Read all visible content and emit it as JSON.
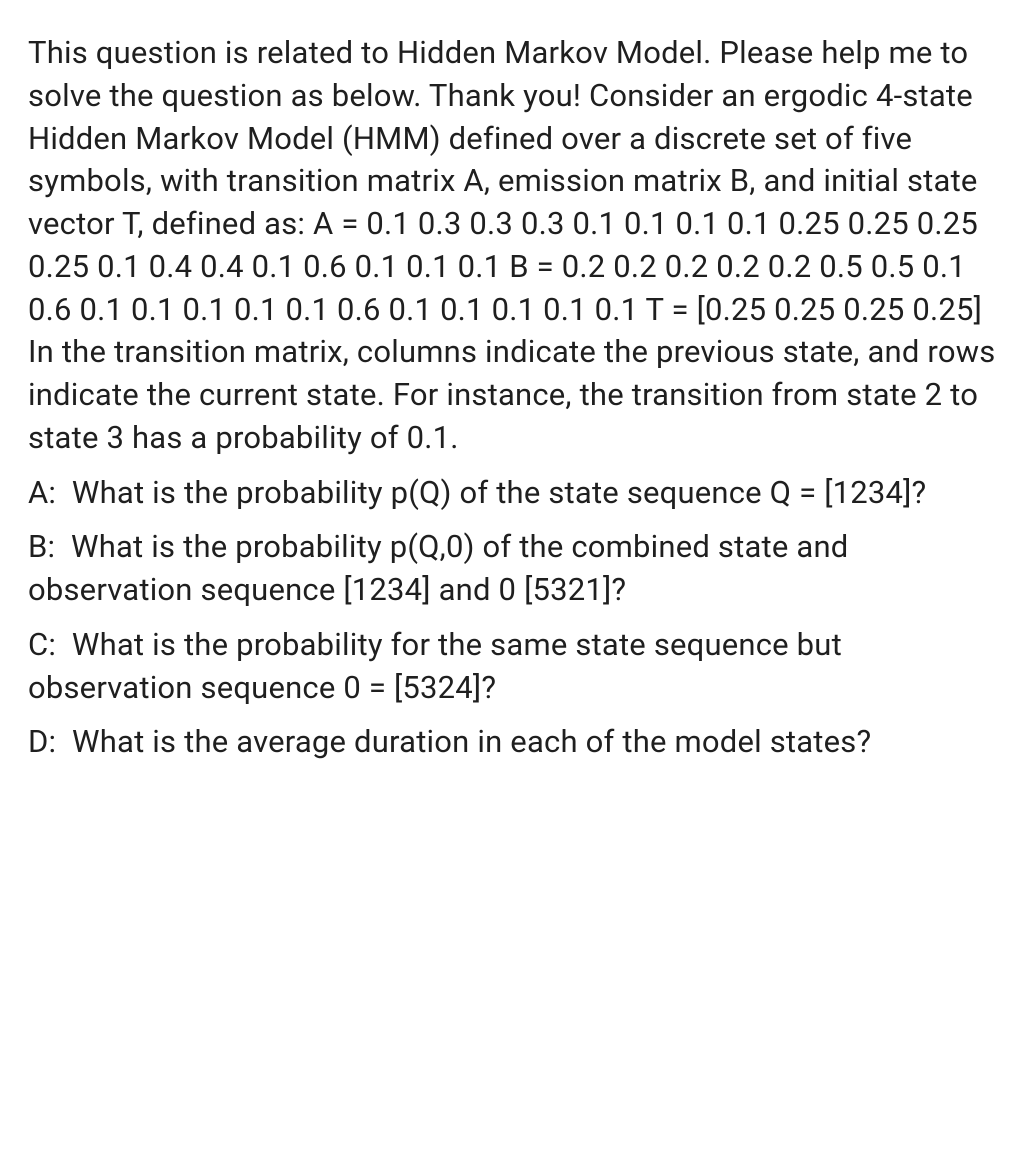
{
  "document": {
    "text_color": "#1f1f1f",
    "background_color": "#ffffff",
    "font_size": 31,
    "line_height": 1.38,
    "paragraphs": [
      {
        "text": "This question is related to Hidden Markov Model. Please help me to solve the question as below. Thank you! Consider an ergodic 4-state Hidden Markov Model (HMM) defined over a discrete set of five symbols, with transition matrix A, emission matrix B, and initial state vector T, defined as: A = 0.1 0.3 0.3 0.3 0.1 0.1 0.1 0.1 0.25 0.25 0.25 0.25 0.1 0.4 0.4 0.1 0.6 0.1 0.1 0.1 B = 0.2 0.2 0.2 0.2 0.2 0.5 0.5 0.1 0.6 0.1 0.1 0.1 0.1 0.1 0.6 0.1 0.1 0.1 0.1 0.1 T = [0.25 0.25 0.25 0.25] In the transition matrix, columns indicate the previous state, and rows indicate the current state. For instance, the transition from state 2 to state 3 has a probability of 0.1."
      },
      {
        "text": "A:  What is the probability p(Q) of the state sequence Q = [1234]?"
      },
      {
        "text": "B:  What is the probability p(Q,0) of the combined state and observation sequence [1234] and 0 [5321]?"
      },
      {
        "text": "C:  What is the probability for the same state sequence but observation sequence 0 = [5324]?"
      },
      {
        "text": "D:  What is the average duration in each of the model states?"
      }
    ]
  }
}
